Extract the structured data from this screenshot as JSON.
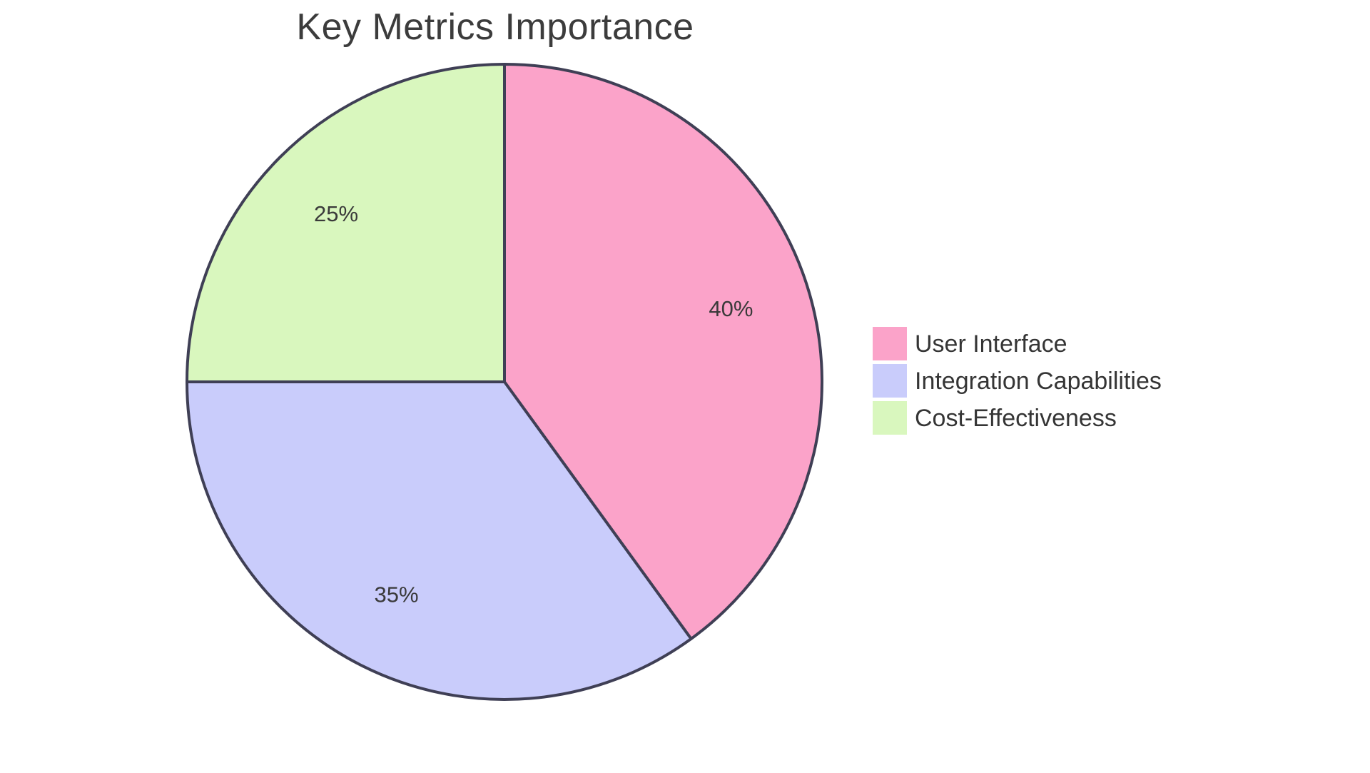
{
  "chart_data": {
    "type": "pie",
    "title": "Key Metrics Importance",
    "slices": [
      {
        "label": "User Interface",
        "value": 40,
        "display": "40%",
        "color": "#fba3c9"
      },
      {
        "label": "Integration Capabilities",
        "value": 35,
        "display": "35%",
        "color": "#c9ccfb"
      },
      {
        "label": "Cost-Effectiveness",
        "value": 25,
        "display": "25%",
        "color": "#d9f7be"
      }
    ],
    "start_angle": "top",
    "direction": "clockwise",
    "slice_border_color": "#3f3f55",
    "label_color": "#3a3a3a",
    "title_color": "#3c3c3c",
    "legend_text_color": "#353535",
    "legend_position": "right",
    "background_color": "#ffffff"
  }
}
